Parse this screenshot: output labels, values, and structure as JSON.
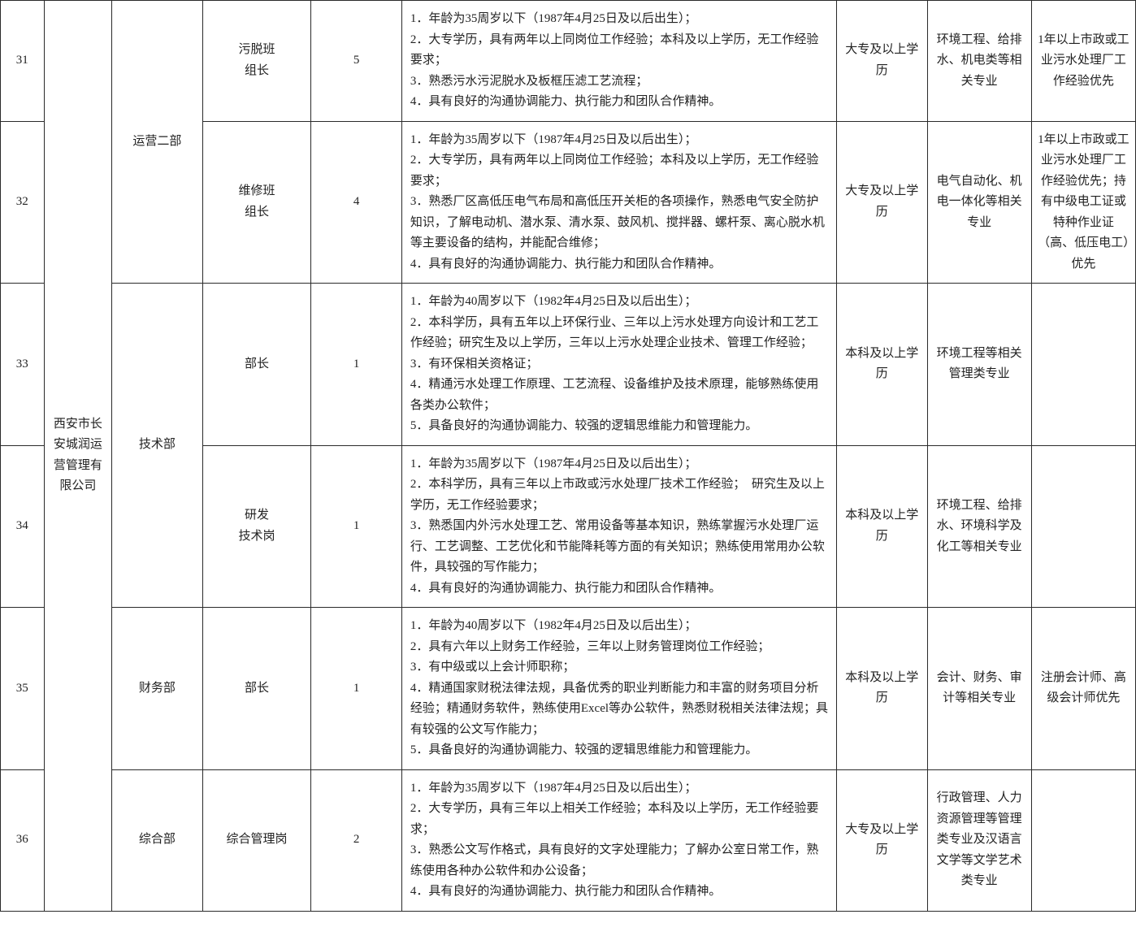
{
  "org": "西安市长安城润运营管理有限公司",
  "rows": [
    {
      "idx": "31",
      "dept": "运营二部",
      "dept_rowspan": 2,
      "pos": "污脱班\n组长",
      "num": "5",
      "req": "1．年龄为35周岁以下（1987年4月25日及以后出生）；\n2．大专学历，具有两年以上同岗位工作经验；本科及以上学历，无工作经验要求；\n3．熟悉污水污泥脱水及板框压滤工艺流程；\n4．具有良好的沟通协调能力、执行能力和团队合作精神。",
      "edu": "大专及以上学历",
      "major": "环境工程、给排水、机电类等相关专业",
      "note": "1年以上市政或工业污水处理厂工作经验优先"
    },
    {
      "idx": "32",
      "pos": "维修班\n组长",
      "num": "4",
      "req": "1．年龄为35周岁以下（1987年4月25日及以后出生）；\n2．大专学历，具有两年以上同岗位工作经验；本科及以上学历，无工作经验要求；\n3．熟悉厂区高低压电气布局和高低压开关柜的各项操作，熟悉电气安全防护知识，了解电动机、潜水泵、清水泵、鼓风机、搅拌器、螺杆泵、离心脱水机等主要设备的结构，并能配合维修；\n4．具有良好的沟通协调能力、执行能力和团队合作精神。",
      "edu": "大专及以上学历",
      "major": "电气自动化、机电一体化等相关专业",
      "note": "1年以上市政或工业污水处理厂工作经验优先；持有中级电工证或特种作业证（高、低压电工）优先"
    },
    {
      "idx": "33",
      "dept": "技术部",
      "dept_rowspan": 2,
      "pos": "部长",
      "num": "1",
      "req": "1．年龄为40周岁以下（1982年4月25日及以后出生）；\n2．本科学历，具有五年以上环保行业、三年以上污水处理方向设计和工艺工作经验；研究生及以上学历，三年以上污水处理企业技术、管理工作经验；\n3．有环保相关资格证；\n4．精通污水处理工作原理、工艺流程、设备维护及技术原理，能够熟练使用各类办公软件；\n5．具备良好的沟通协调能力、较强的逻辑思维能力和管理能力。",
      "edu": "本科及以上学历",
      "major": "环境工程等相关管理类专业",
      "note": ""
    },
    {
      "idx": "34",
      "pos": "研发\n技术岗",
      "num": "1",
      "req": "1．年龄为35周岁以下（1987年4月25日及以后出生）；\n2．本科学历，具有三年以上市政或污水处理厂技术工作经验；　研究生及以上学历，无工作经验要求；\n3．熟悉国内外污水处理工艺、常用设备等基本知识，熟练掌握污水处理厂运行、工艺调整、工艺优化和节能降耗等方面的有关知识；熟练使用常用办公软件，具较强的写作能力；\n4．具有良好的沟通协调能力、执行能力和团队合作精神。",
      "edu": "本科及以上学历",
      "major": "环境工程、给排水、环境科学及化工等相关专业",
      "note": ""
    },
    {
      "idx": "35",
      "dept": "财务部",
      "dept_rowspan": 1,
      "pos": "部长",
      "num": "1",
      "req": "1．年龄为40周岁以下（1982年4月25日及以后出生）；\n2．具有六年以上财务工作经验，三年以上财务管理岗位工作经验；\n3．有中级或以上会计师职称；\n4．精通国家财税法律法规，具备优秀的职业判断能力和丰富的财务项目分析经验；精通财务软件，熟练使用Excel等办公软件，熟悉财税相关法律法规；具有较强的公文写作能力；\n5．具备良好的沟通协调能力、较强的逻辑思维能力和管理能力。",
      "edu": "本科及以上学历",
      "major": "会计、财务、审计等相关专业",
      "note": "注册会计师、高级会计师优先"
    },
    {
      "idx": "36",
      "dept": "综合部",
      "dept_rowspan": 1,
      "pos": "综合管理岗",
      "num": "2",
      "req": "1．年龄为35周岁以下（1987年4月25日及以后出生）；\n2．大专学历，具有三年以上相关工作经验；本科及以上学历，无工作经验要求；\n3．熟悉公文写作格式，具有良好的文字处理能力；了解办公室日常工作，熟练使用各种办公软件和办公设备；\n4．具有良好的沟通协调能力、执行能力和团队合作精神。",
      "edu": "大专及以上学历",
      "major": "行政管理、人力资源管理等管理类专业及汉语言文学等文学艺术类专业",
      "note": ""
    }
  ]
}
